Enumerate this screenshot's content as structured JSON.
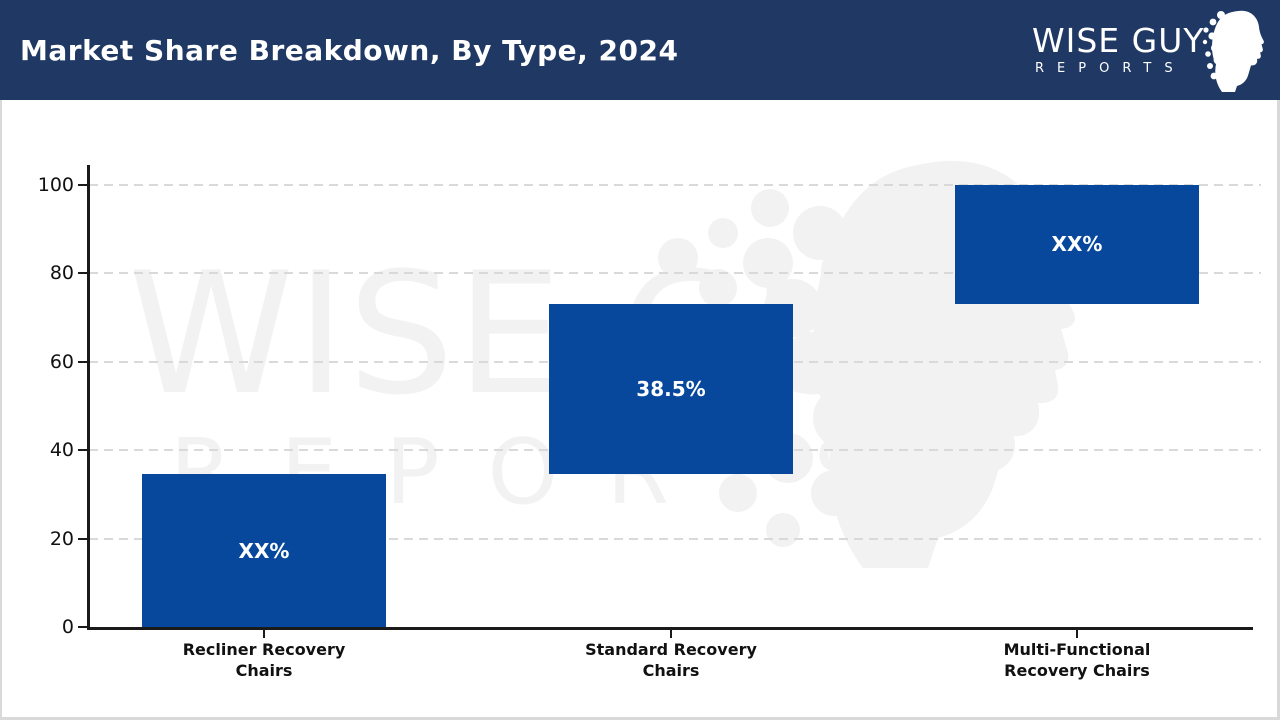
{
  "header": {
    "title": "Market Share Breakdown, By Type, 2024",
    "bg_color": "#1F3864",
    "logo": {
      "line1": "WISE GUY",
      "line2": "REPORTS"
    }
  },
  "watermark": {
    "line1": "WISE GUY",
    "line2": "REPORTS"
  },
  "chart_data": {
    "type": "bar",
    "subtype": "stacked_percentage_waterfall",
    "title": "Market Share Breakdown, By Type, 2024",
    "categories": [
      "Recliner Recovery Chairs",
      "Standard Recovery Chairs",
      "Multi-Functional Recovery Chairs"
    ],
    "categories_lines": [
      [
        "Recliner Recovery",
        "Chairs"
      ],
      [
        "Standard Recovery",
        "Chairs"
      ],
      [
        "Multi-Functional",
        "Recovery Chairs"
      ]
    ],
    "bars": [
      {
        "category": "Recliner Recovery Chairs",
        "base": 0,
        "top": 34.6,
        "label": "XX%"
      },
      {
        "category": "Standard Recovery Chairs",
        "base": 34.6,
        "top": 73.1,
        "label": "38.5%",
        "value": 38.5
      },
      {
        "category": "Multi-Functional Recovery Chairs",
        "base": 73.1,
        "top": 100,
        "label": "XX%"
      }
    ],
    "xlabel": "",
    "ylabel": "",
    "ylim": [
      0,
      100
    ],
    "yticks": [
      0,
      20,
      40,
      60,
      80,
      100
    ],
    "grid": "horizontal-dashed",
    "legend": "none",
    "bar_color": "#07489C",
    "bar_label_color": "#FFFFFF",
    "axis_color": "#1A1A1A",
    "gridline_color": "#D9D9D9"
  }
}
